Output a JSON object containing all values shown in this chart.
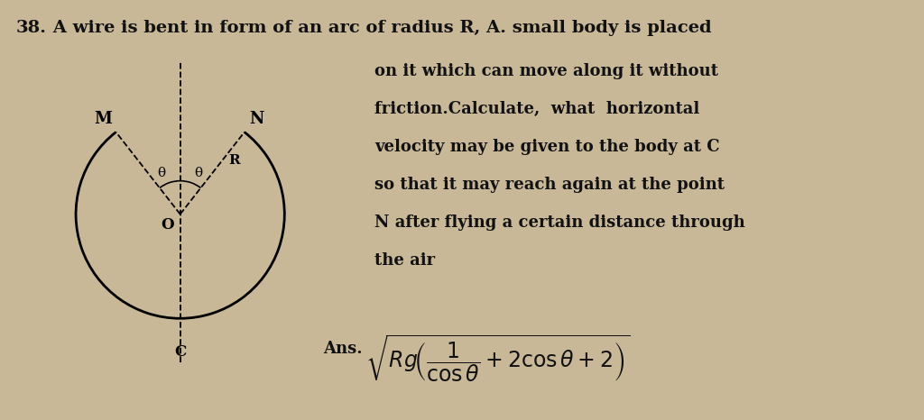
{
  "bg_color": "#c8b898",
  "text_color": "#111111",
  "title_num": "38.",
  "title_rest": " A wire is bent in form of an arc of radius R, A. small body is placed",
  "para_lines": [
    "on it which can move along it without",
    "friction.Calculate,  what  horizontal",
    "velocity may be given to the body at C",
    "so that it may reach again at the point",
    "N after flying a certain distance through",
    "the air"
  ],
  "ans_label": "Ans.",
  "theta_deg": 38,
  "label_M": "M",
  "label_N": "N",
  "label_O": "O",
  "label_C": "C",
  "label_R": "R",
  "label_theta": "θ"
}
